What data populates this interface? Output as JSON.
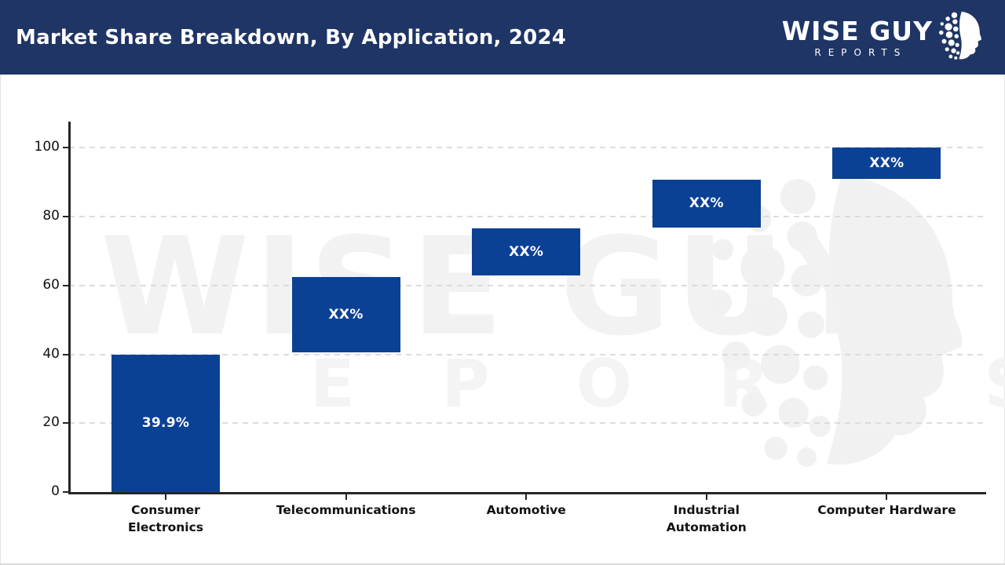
{
  "header": {
    "title": "Market Share Breakdown, By Application, 2024"
  },
  "logo": {
    "line1": "WISE GUY",
    "line2": "REPORTS"
  },
  "watermark": {
    "line1": "WISE GUY",
    "line2": "REPORTS"
  },
  "colors": {
    "header_bg": "#1e3565",
    "bar": "#0b4194",
    "bar_label": "#ffffff",
    "grid": "#dcdcdc",
    "axis": "#262626",
    "watermark": "#f2f2f2"
  },
  "chart_data": {
    "type": "bar",
    "subtype": "waterfall",
    "title": "Market Share Breakdown, By Application, 2024",
    "xlabel": "",
    "ylabel": "",
    "categories": [
      "Consumer\nElectronics",
      "Telecommunications",
      "Automotive",
      "Industrial\nAutomation",
      "Computer Hardware"
    ],
    "segments": [
      {
        "category": "Consumer Electronics",
        "start": 0,
        "end": 39.9,
        "label": "39.9%"
      },
      {
        "category": "Telecommunications",
        "start": 40.5,
        "end": 62.5,
        "label": "XX%"
      },
      {
        "category": "Automotive",
        "start": 63.0,
        "end": 76.6,
        "label": "XX%"
      },
      {
        "category": "Industrial Automation",
        "start": 76.9,
        "end": 90.7,
        "label": "XX%"
      },
      {
        "category": "Computer Hardware",
        "start": 90.9,
        "end": 100.0,
        "label": "XX%"
      }
    ],
    "yticks": [
      0,
      20,
      40,
      60,
      80,
      100
    ],
    "ylim": [
      0,
      107.5
    ],
    "grid": "horizontal-dashed",
    "legend": "none"
  }
}
